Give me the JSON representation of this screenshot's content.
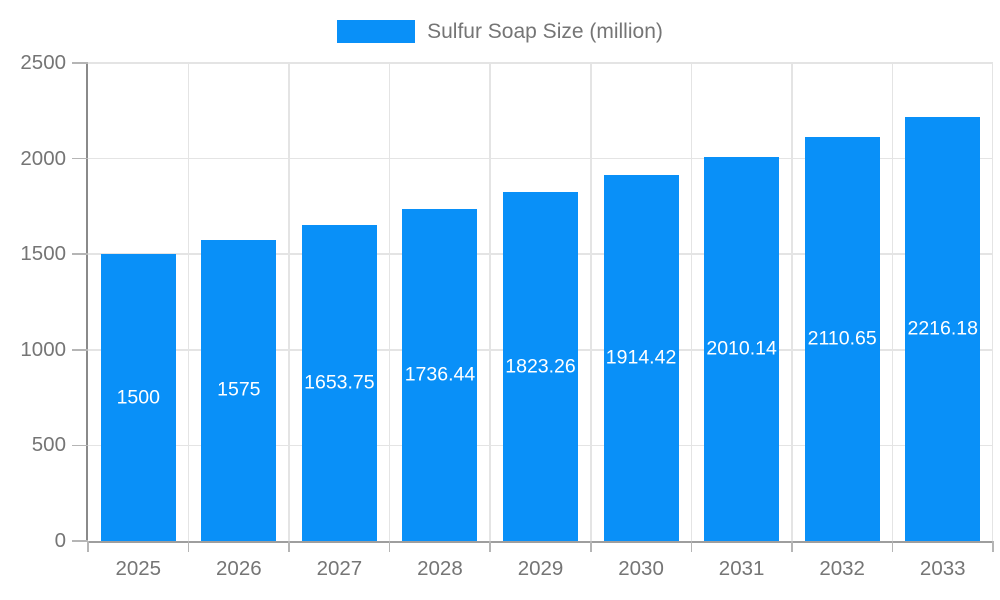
{
  "chart_data": {
    "type": "bar",
    "title": "Sulfur Soap Size (million)",
    "legend_position": "top",
    "categories": [
      "2025",
      "2026",
      "2027",
      "2028",
      "2029",
      "2030",
      "2031",
      "2032",
      "2033"
    ],
    "values": [
      1500,
      1575,
      1653.75,
      1736.44,
      1823.26,
      1914.42,
      2010.14,
      2110.65,
      2216.18
    ],
    "value_labels": [
      "1500",
      "1575",
      "1653.75",
      "1736.44",
      "1823.26",
      "1914.42",
      "2010.14",
      "2110.65",
      "2216.18"
    ],
    "xlabel": "",
    "ylabel": "",
    "ylim": [
      0,
      2500
    ],
    "yticks": [
      0,
      500,
      1000,
      1500,
      2000,
      2500
    ],
    "ytick_labels": [
      "0",
      "500",
      "1000",
      "1500",
      "2000",
      "2500"
    ],
    "grid": true,
    "colors": {
      "bar": "#0990f8",
      "bar_label_text": "#ffffff",
      "axis_text": "#757575",
      "legend_text": "#757575",
      "grid_line": "#e4e4e4",
      "axis_line_y": "#8a8a8a",
      "axis_line_x": "#9e9e9e",
      "tick": "#b5b5b5",
      "background": "#ffffff"
    }
  }
}
